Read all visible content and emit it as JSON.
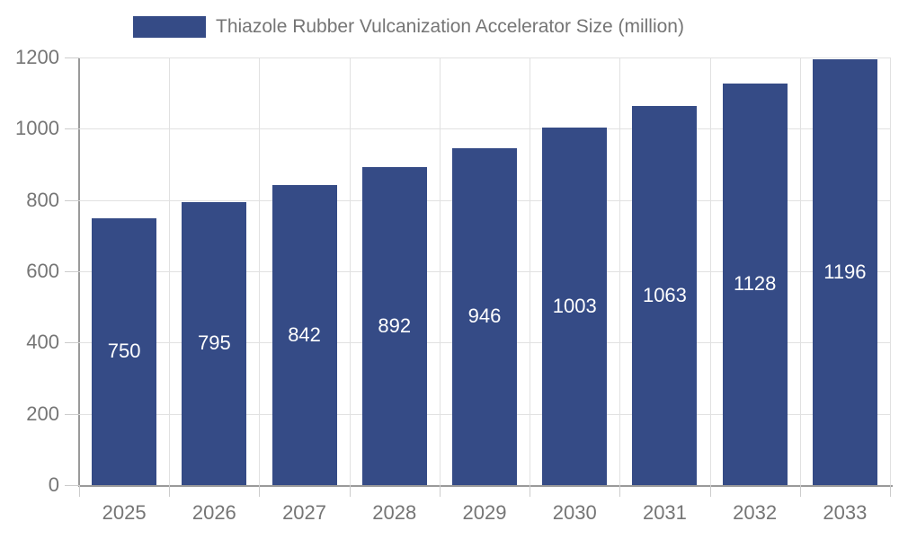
{
  "chart_data": {
    "type": "bar",
    "title": "Thiazole Rubber Vulcanization Accelerator Size (million)",
    "legend": [
      "Thiazole Rubber Vulcanization Accelerator Size (million)"
    ],
    "legend_position": "top-left",
    "categories": [
      "2025",
      "2026",
      "2027",
      "2028",
      "2029",
      "2030",
      "2031",
      "2032",
      "2033"
    ],
    "values": [
      750,
      795,
      842,
      892,
      946,
      1003,
      1063,
      1128,
      1196
    ],
    "xlabel": "",
    "ylabel": "",
    "ylim": [
      0,
      1200
    ],
    "yticks": [
      0,
      200,
      400,
      600,
      800,
      1000,
      1200
    ],
    "grid": true,
    "bar_value_labels_inside": true,
    "colors": {
      "bar": "#354B86",
      "axis_label": "#757575",
      "bar_label": "#ffffff",
      "grid_line": "#e1e1e1",
      "axis_line": "#9a9a9a",
      "background": "#ffffff"
    }
  }
}
